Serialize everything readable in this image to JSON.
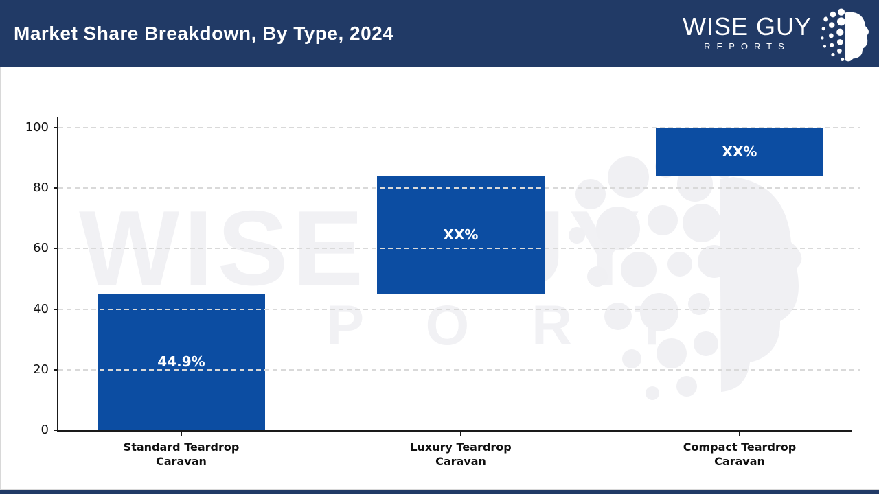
{
  "header": {
    "title": "Market Share Breakdown, By Type, 2024",
    "logo": {
      "line1": "WISE GUY",
      "line2": "REPORTS"
    }
  },
  "watermark": {
    "line1": "WISE GUY",
    "line2": "R E P O R T S"
  },
  "colors": {
    "header_bg": "#213a66",
    "footer_bg": "#213a66",
    "bar_fill": "#0c4da2",
    "bar_label": "#ffffff",
    "grid": "#d9d9d9",
    "axis": "#1a1a1a",
    "tick_text": "#111111",
    "watermark": "#f1f1f4"
  },
  "chart_data": {
    "type": "bar",
    "variant": "floating-waterfall",
    "title": "Market Share Breakdown, By Type, 2024",
    "categories": [
      "Standard Teardrop Caravan",
      "Luxury Teardrop Caravan",
      "Compact Teardrop Caravan"
    ],
    "category_lines": [
      [
        "Standard Teardrop",
        "Caravan"
      ],
      [
        "Luxury Teardrop",
        "Caravan"
      ],
      [
        "Compact Teardrop",
        "Caravan"
      ]
    ],
    "segments": [
      {
        "category": "Standard Teardrop Caravan",
        "start": 0,
        "end": 44.9,
        "label": "44.9%"
      },
      {
        "category": "Luxury Teardrop Caravan",
        "start": 44.9,
        "end": 83.8,
        "label": "XX%"
      },
      {
        "category": "Compact Teardrop Caravan",
        "start": 83.8,
        "end": 100,
        "label": "XX%"
      }
    ],
    "ylim": [
      0,
      100
    ],
    "yticks": [
      0,
      20,
      40,
      60,
      80,
      100
    ],
    "grid": "horizontal-dashed",
    "legend": "none"
  }
}
